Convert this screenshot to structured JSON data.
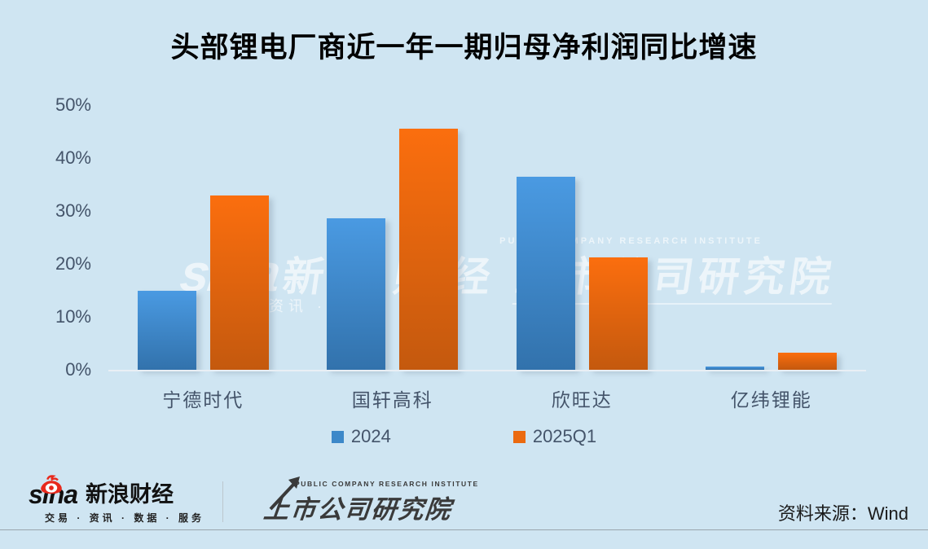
{
  "chart_data": {
    "type": "bar",
    "title": "头部锂电厂商近一年一期归母净利润同比增速",
    "categories": [
      "宁德时代",
      "国轩高科",
      "欣旺达",
      "亿纬锂能"
    ],
    "series": [
      {
        "name": "2024",
        "values": [
          15.0,
          28.6,
          36.4,
          0.6
        ],
        "gradient_top": "#4a9ae2",
        "gradient_bottom": "#3272ac",
        "legend_color": "#3c88c9"
      },
      {
        "name": "2025Q1",
        "values": [
          32.9,
          45.6,
          21.2,
          3.3
        ],
        "gradient_top": "#fb6e0e",
        "gradient_bottom": "#c4590e",
        "legend_color": "#eb6a10"
      }
    ],
    "xlabel": "",
    "ylabel": "",
    "ylim": [
      0,
      50
    ],
    "ytick_step": 10,
    "ytick_suffix": "%",
    "grid": false,
    "legend_position": "bottom"
  },
  "watermark": {
    "sina_script": "sina",
    "brand": "新浪财经",
    "sub": "资讯 · 数据",
    "institute": "上市公司研究院",
    "institute_en": "PUBLIC COMPANY RESEARCH INSTITUTE"
  },
  "footer": {
    "sina_wordmark": "sina",
    "sina_brand": "新浪财经",
    "sina_tagline": "交易 · 资讯 · 数据 · 服务",
    "institute_en": "PUBLIC COMPANY RESEARCH INSTITUTE",
    "institute": "上市公司研究院",
    "source": "资料来源：Wind"
  },
  "colors": {
    "background": "#cfe5f2",
    "axis_text": "#44546a",
    "baseline": "#e9eff5",
    "title_text": "#000000",
    "source_text": "#1a1a1a",
    "sina_red": "#e8291c",
    "institute_dark": "#3a3a3a"
  }
}
